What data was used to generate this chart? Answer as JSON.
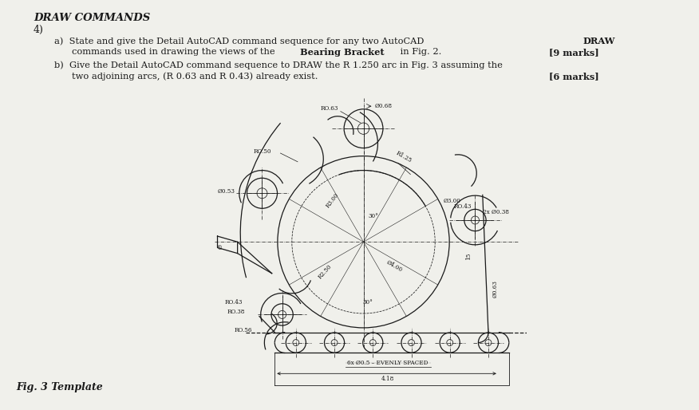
{
  "bg": "#f5f5f0",
  "dc": "#1a1a1a",
  "title": "DRAW COMMANDS",
  "q_num": "4)",
  "fig_label": "Fig. 3 Template"
}
